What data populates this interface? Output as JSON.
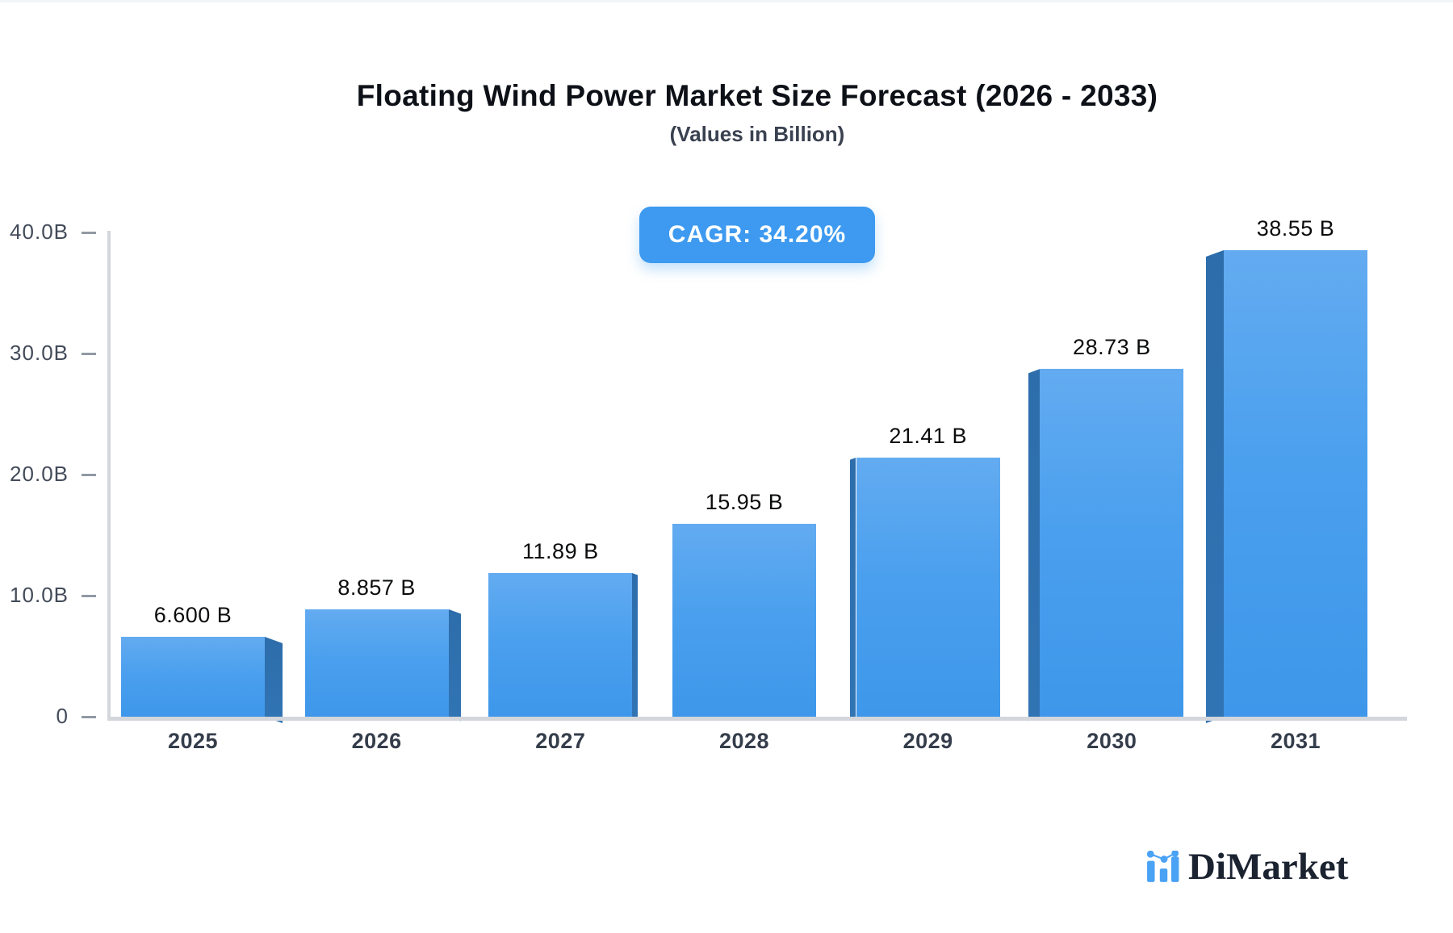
{
  "header": {
    "title": "Floating Wind Power Market Size Forecast (2026 - 2033)",
    "subtitle": "(Values in Billion)"
  },
  "badge": {
    "label": "CAGR: 34.20%"
  },
  "brand": {
    "name": "DiMarket",
    "icon": "bar-chart-logo-icon"
  },
  "colors": {
    "bar_face_top": "#63abf1",
    "bar_face_bottom": "#3e97ea",
    "bar_side": "#2f72b4",
    "badge_bg": "#3d9af0",
    "axis_line": "#d3d6db",
    "tick_text": "#434b59",
    "title_text": "#0d1117",
    "logo_blue": "#4aa2f5"
  },
  "chart_data": {
    "type": "bar",
    "title": "Floating Wind Power Market Size Forecast (2026 - 2033)",
    "subtitle": "(Values in Billion)",
    "categories": [
      "2025",
      "2026",
      "2027",
      "2028",
      "2029",
      "2030",
      "2031"
    ],
    "values": [
      6.6,
      8.857,
      11.89,
      15.95,
      21.41,
      28.73,
      38.55
    ],
    "value_labels": [
      "6.600 B",
      "8.857 B",
      "11.89 B",
      "15.95 B",
      "21.41 B",
      "28.73 B",
      "38.55 B"
    ],
    "unit": "Billion",
    "cagr": "34.20%",
    "xlabel": "",
    "ylabel": "",
    "ylim": [
      0,
      40
    ],
    "ytick_values": [
      0,
      10,
      20,
      30,
      40
    ],
    "ytick_labels": [
      "0",
      "10.0B",
      "20.0B",
      "30.0B",
      "40.0B"
    ],
    "grid": false,
    "legend": "none",
    "style": "3d-perspective-bars"
  }
}
